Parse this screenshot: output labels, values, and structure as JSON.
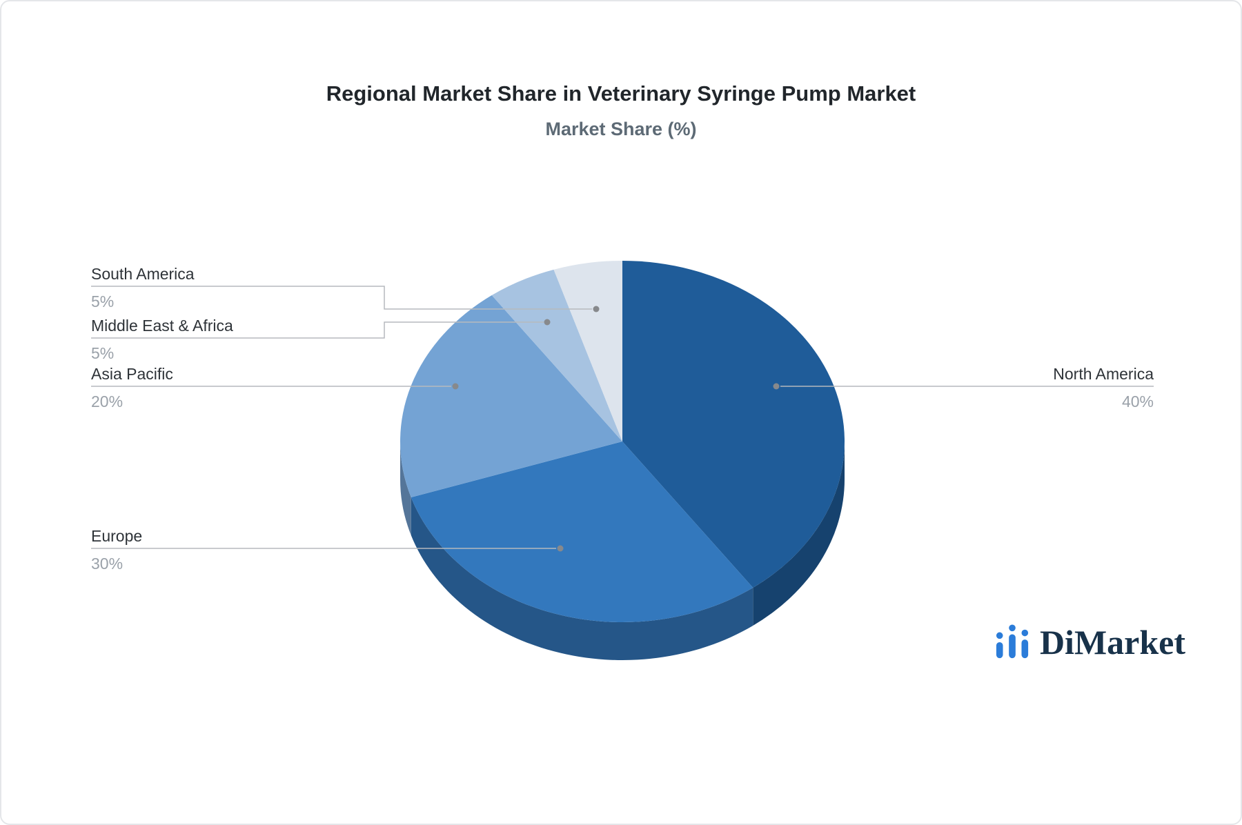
{
  "chart_data": {
    "type": "pie",
    "title": "Regional Market Share in Veterinary Syringe Pump Market",
    "subtitle": "Market Share (%)",
    "unit": "%",
    "categories": [
      "North America",
      "Europe",
      "Asia Pacific",
      "Middle East & Africa",
      "South America"
    ],
    "values": [
      40,
      30,
      20,
      5,
      5
    ],
    "display_values": [
      "40%",
      "30%",
      "20%",
      "5%",
      "5%"
    ],
    "colors": [
      "#1f5c99",
      "#3378bd",
      "#74a3d4",
      "#a7c3e1",
      "#dde4ed"
    ],
    "start_angle_deg": 0,
    "direction": "clockwise",
    "style_3d": true,
    "legend_position": "callout-labels"
  },
  "branding": {
    "logo_text": "DiMarket",
    "logo_icon": "bar-chart-icon",
    "logo_color": "#2b7cd9",
    "logo_text_color": "#18324a"
  },
  "palette": {
    "background": "#ffffff",
    "border_color": "#e4e6e9",
    "title_color": "#21262b",
    "subtitle_color": "#5d6a75",
    "label_color": "#2e3338",
    "value_color": "#9aa1a9",
    "callout_line_color": "#b6b9bd",
    "callout_dot_color": "#87898c"
  }
}
